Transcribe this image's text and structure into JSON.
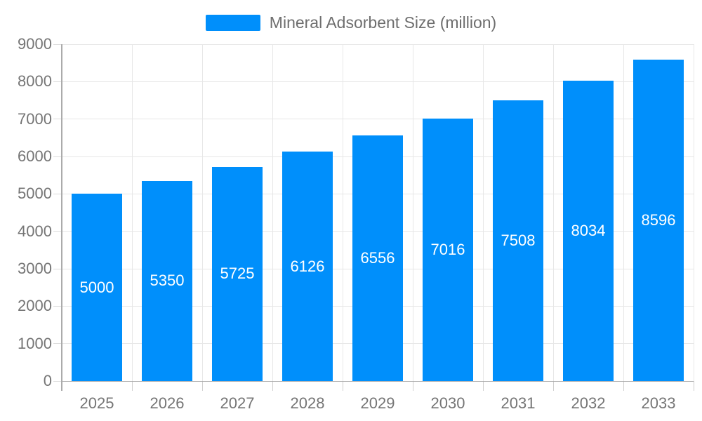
{
  "chart_data": {
    "type": "bar",
    "title": "",
    "legend": {
      "label": "Mineral Adsorbent Size (million)",
      "position": "top"
    },
    "categories": [
      "2025",
      "2026",
      "2027",
      "2028",
      "2029",
      "2030",
      "2031",
      "2032",
      "2033"
    ],
    "series": [
      {
        "name": "Mineral Adsorbent Size (million)",
        "values": [
          5000,
          5350,
          5725,
          6126,
          6556,
          7016,
          7508,
          8034,
          8596
        ]
      }
    ],
    "xlabel": "",
    "ylabel": "",
    "ylim": [
      0,
      9000
    ],
    "yticks": [
      0,
      1000,
      2000,
      3000,
      4000,
      5000,
      6000,
      7000,
      8000,
      9000
    ],
    "grid": true,
    "bar_labels_visible": true,
    "colors": {
      "bar": "#008FFB",
      "bar_label_text": "#ffffff",
      "axis_label_text": "#757575",
      "legend_text": "#6e6e6e",
      "gridline": "#e7e7e7",
      "axis_line": "#ababab",
      "background": "#ffffff"
    }
  }
}
